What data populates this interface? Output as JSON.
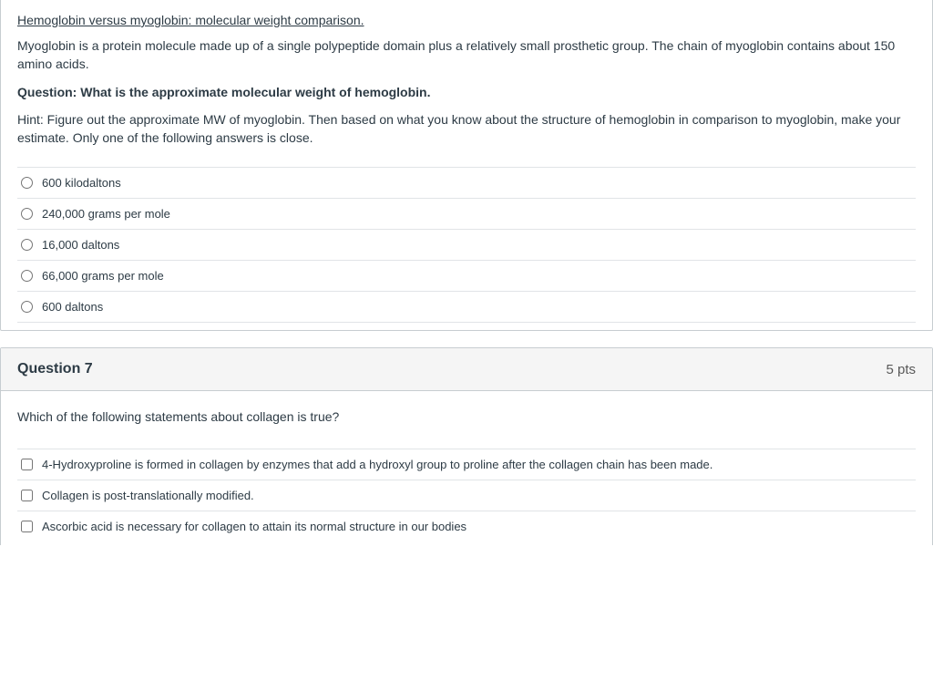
{
  "q6": {
    "title": "Hemoglobin versus myoglobin: molecular weight comparison.",
    "p1": "Myoglobin is a protein molecule made up of a single polypeptide domain plus a relatively small prosthetic group.  The chain of myoglobin contains about 150 amino acids.",
    "question_prefix": "Question: ",
    "question_text": "What is the approximate molecular weight of hemoglobin.",
    "hint": "Hint:  Figure out the approximate MW of myoglobin.  Then based on what you know about the structure of hemoglobin in comparison to myoglobin, make your estimate.  Only one of the following answers is close.",
    "options": [
      "600 kilodaltons",
      "240,000 grams per mole",
      "16,000 daltons",
      "66,000 grams per mole",
      "600 daltons"
    ]
  },
  "q7": {
    "header": "Question 7",
    "points": "5 pts",
    "stem": "Which of the following statements about collagen is true?",
    "options": [
      "4-Hydroxyproline is formed in collagen by enzymes that add a hydroxyl group to proline after the collagen chain has been made.",
      "Collagen is post-translationally modified.",
      "Ascorbic acid is necessary for collagen to attain its normal structure in our bodies"
    ]
  }
}
